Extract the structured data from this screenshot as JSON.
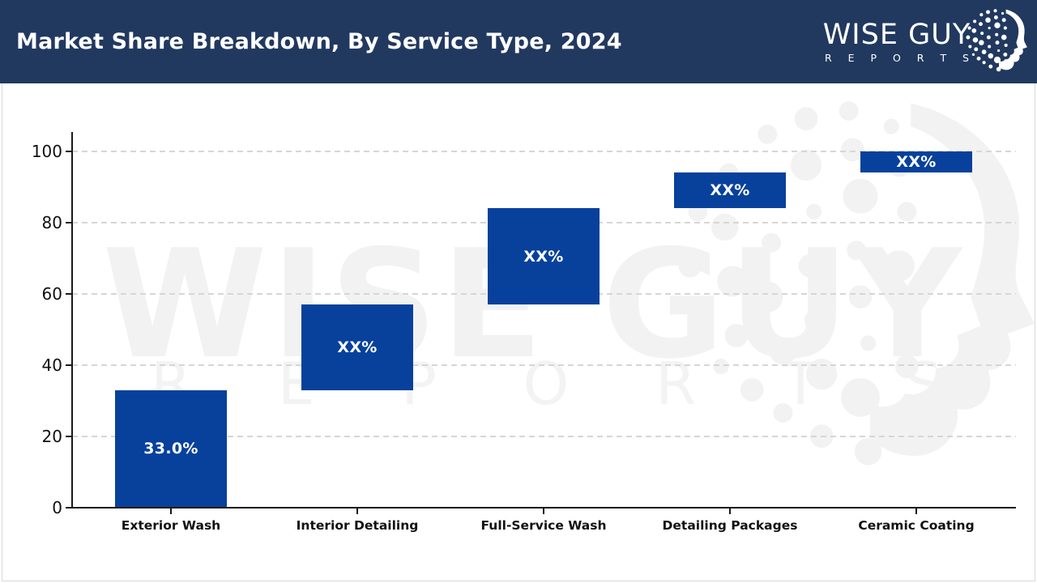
{
  "header": {
    "title": "Market Share Breakdown, By Service Type, 2024",
    "bg_color": "#21395f",
    "logo": {
      "line1": "WISE GUY",
      "line2": "R E P O R T S"
    }
  },
  "watermark": {
    "line1": "WISE GUY",
    "line2": "R E P O R T S"
  },
  "chart_data": {
    "type": "bar",
    "subtype": "waterfall",
    "title": "Market Share Breakdown, By Service Type, 2024",
    "categories": [
      "Exterior Wash",
      "Interior Detailing",
      "Full-Service Wash",
      "Detailing Packages",
      "Ceramic Coating"
    ],
    "segments": [
      {
        "category": "Exterior Wash",
        "start": 0,
        "end": 33,
        "value": 33,
        "label": "33.0%"
      },
      {
        "category": "Interior Detailing",
        "start": 33,
        "end": 57,
        "value": 24,
        "label": "XX%"
      },
      {
        "category": "Full-Service Wash",
        "start": 57,
        "end": 84,
        "value": 27,
        "label": "XX%"
      },
      {
        "category": "Detailing Packages",
        "start": 84,
        "end": 94,
        "value": 10,
        "label": "XX%"
      },
      {
        "category": "Ceramic Coating",
        "start": 94,
        "end": 100,
        "value": 6,
        "label": "XX%"
      }
    ],
    "yticks": [
      0,
      20,
      40,
      60,
      80,
      100
    ],
    "ylim": [
      0,
      105.5
    ],
    "xlabel": "",
    "ylabel": "",
    "grid": "horizontal-dashed",
    "legend": "none",
    "bar_color": "#07419c",
    "bar_label_color": "#ffffff",
    "grid_color": "#d6d6d6",
    "axis_color": "#1a1a1a"
  }
}
